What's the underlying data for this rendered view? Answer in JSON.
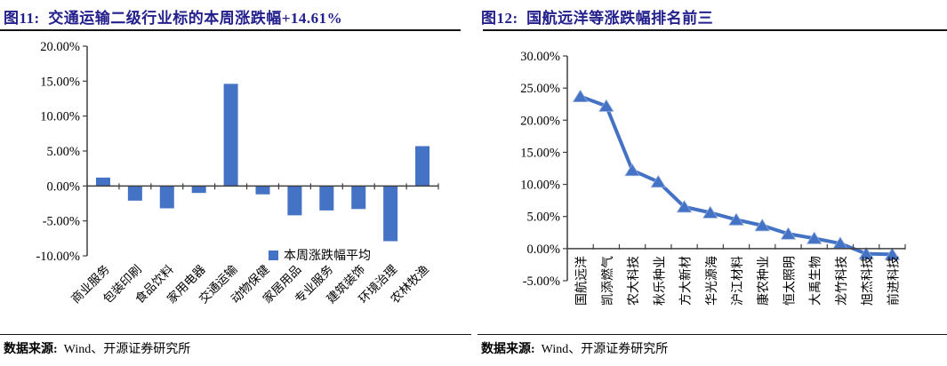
{
  "figures": [
    {
      "title": "图11:  交通运输二级行业标的本周涨跌幅+14.61%",
      "source": {
        "label": "数据来源:",
        "text": "  Wind、开源证券研究所"
      }
    },
    {
      "title": "图12:  国航远洋等涨跌幅排名前三",
      "source": {
        "label": "数据来源:",
        "text": "  Wind、开源证券研究所"
      }
    }
  ],
  "chart_data": [
    {
      "type": "bar",
      "title": "交通运输二级行业标的本周涨跌幅+14.61%",
      "categories": [
        "商业服务",
        "包装印刷",
        "食品饮料",
        "家用电器",
        "交通运输",
        "动物保健",
        "家居用品",
        "专业服务",
        "建筑装饰",
        "环境治理",
        "农林牧渔"
      ],
      "values": [
        1.2,
        -2.1,
        -3.2,
        -1.0,
        14.61,
        -1.2,
        -4.2,
        -3.5,
        -3.3,
        -7.9,
        5.7
      ],
      "unit": "%",
      "ylim": [
        -10,
        20
      ],
      "ytick_step": 5,
      "ytick_labels": [
        "20.00%",
        "15.00%",
        "10.00%",
        "5.00%",
        "0.00%",
        "-5.00%",
        "-10.00%"
      ],
      "legend": [
        "本周涨跌幅平均"
      ],
      "legend_position": "bottom-right",
      "grid": false,
      "bar_color": "#4472C4"
    },
    {
      "type": "line",
      "title": "国航远洋等涨跌幅排名前三",
      "categories": [
        "国航远洋",
        "凯添燃气",
        "农大科技",
        "秋乐种业",
        "方大新材",
        "华光源海",
        "沪江材料",
        "康农种业",
        "恒太照明",
        "大禹生物",
        "龙竹科技",
        "旭杰科技",
        "前进科技"
      ],
      "values": [
        23.7,
        22.2,
        12.2,
        10.4,
        6.5,
        5.6,
        4.5,
        3.6,
        2.3,
        1.6,
        0.8,
        -0.8,
        -0.9
      ],
      "unit": "%",
      "ylim": [
        -5,
        30
      ],
      "ytick_step": 5,
      "ytick_labels": [
        "30.00%",
        "25.00%",
        "20.00%",
        "15.00%",
        "10.00%",
        "5.00%",
        "0.00%",
        "-5.00%"
      ],
      "marker": "triangle",
      "grid": false,
      "line_color": "#4472C4"
    }
  ],
  "colors": {
    "accent_blue": "#4472C4",
    "title_navy": "#23208C",
    "axis_gray": "#3f3f3f"
  }
}
